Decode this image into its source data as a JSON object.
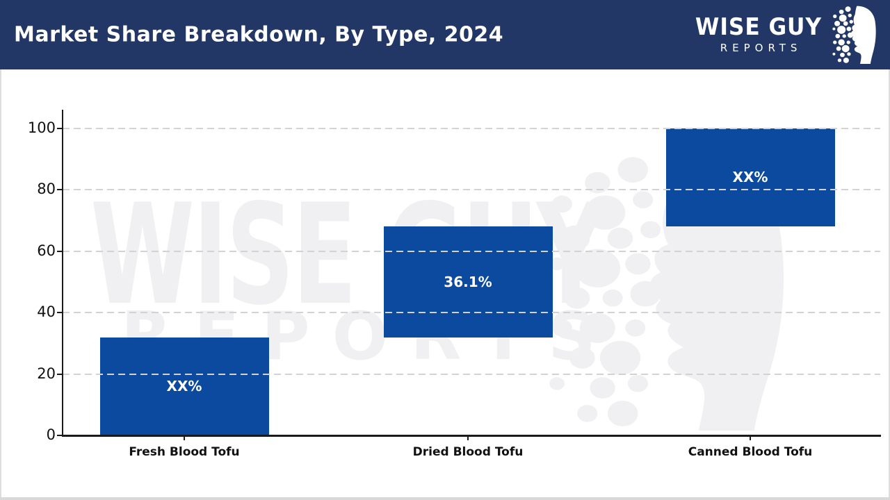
{
  "header": {
    "title": "Market Share Breakdown, By Type, 2024",
    "logo": {
      "name": "WISE GUY",
      "tagline": "REPORTS"
    }
  },
  "watermark": {
    "line1": "WISE GUY",
    "line2": "REPORTS"
  },
  "chart_data": {
    "type": "bar",
    "subtype": "waterfall",
    "title": "Market Share Breakdown, By Type, 2024",
    "categories": [
      "Fresh Blood Tofu",
      "Dried Blood Tofu",
      "Canned Blood Tofu"
    ],
    "series": [
      {
        "name": "Market share (%)",
        "segments": [
          {
            "category": "Fresh Blood Tofu",
            "start": 0,
            "end": 32,
            "label": "XX%"
          },
          {
            "category": "Dried Blood Tofu",
            "start": 32,
            "end": 68.1,
            "label": "36.1%"
          },
          {
            "category": "Canned Blood Tofu",
            "start": 68.1,
            "end": 100,
            "label": "XX%"
          }
        ]
      }
    ],
    "xlabel": "",
    "ylabel": "",
    "ylim": [
      0,
      100
    ],
    "yticks": [
      0,
      20,
      40,
      60,
      80,
      100
    ],
    "grid": "horizontal-dashed",
    "legend": "none",
    "bar_color": "#0c4aa0",
    "label_color": "#ffffff"
  },
  "colors": {
    "header_bg": "#223766",
    "bar_fill": "#0c4aa0",
    "grid_line": "#d2d2d2",
    "axis_line": "#1a1a1a",
    "watermark": "#f0f0f3"
  }
}
